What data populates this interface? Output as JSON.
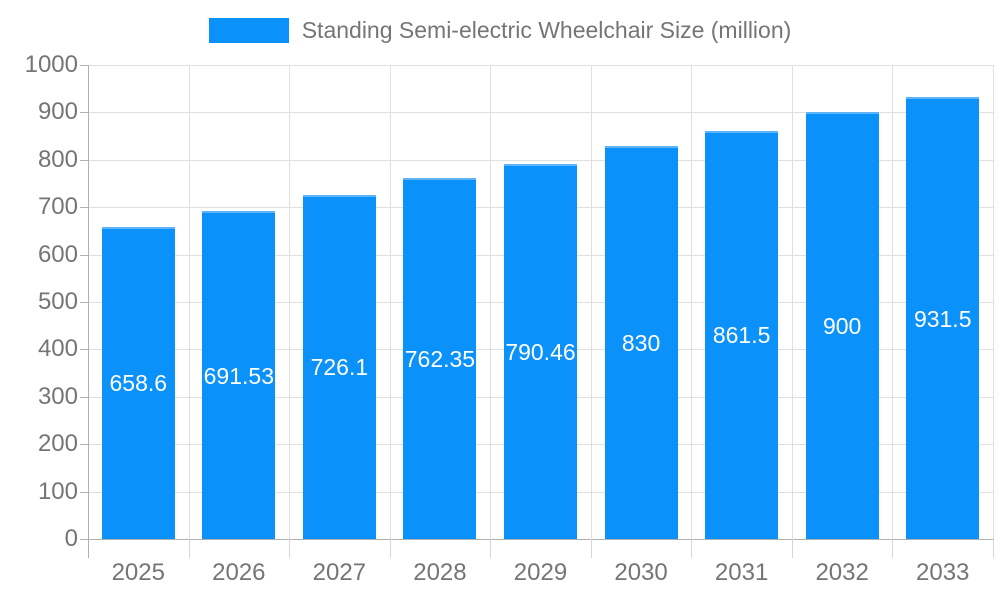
{
  "legend": {
    "label": "Standing Semi-electric Wheelchair Size (million)"
  },
  "colors": {
    "background": "#ffffff",
    "bar_fill": "#0a91fa",
    "bar_top_edge": "#5db4fb",
    "bar_label_text": "#ffffff",
    "grid_line": "#e0e0e0",
    "axis_line": "#b0b0b0",
    "boundary_tick": "#d6d6d6",
    "label_text": "#757575"
  },
  "chart_data": {
    "type": "bar",
    "title": "Standing Semi-electric Wheelchair Size (million)",
    "categories": [
      "2025",
      "2026",
      "2027",
      "2028",
      "2029",
      "2030",
      "2031",
      "2032",
      "2033"
    ],
    "series": [
      {
        "name": "Standing Semi-electric Wheelchair Size (million)",
        "values": [
          658.6,
          691.53,
          726.1,
          762.35,
          790.46,
          830,
          861.5,
          900,
          931.5
        ]
      }
    ],
    "bar_value_labels": [
      "658.6",
      "691.53",
      "726.1",
      "762.35",
      "790.46",
      "830",
      "861.5",
      "900",
      "931.5"
    ],
    "xlabel": "",
    "ylabel": "",
    "ylim": [
      0,
      1000
    ],
    "ytick_interval": 100,
    "ytick_labels": [
      "0",
      "100",
      "200",
      "300",
      "400",
      "500",
      "600",
      "700",
      "800",
      "900",
      "1000"
    ],
    "grid": true,
    "legend_position": "top",
    "value_label_position": "inside-center"
  }
}
